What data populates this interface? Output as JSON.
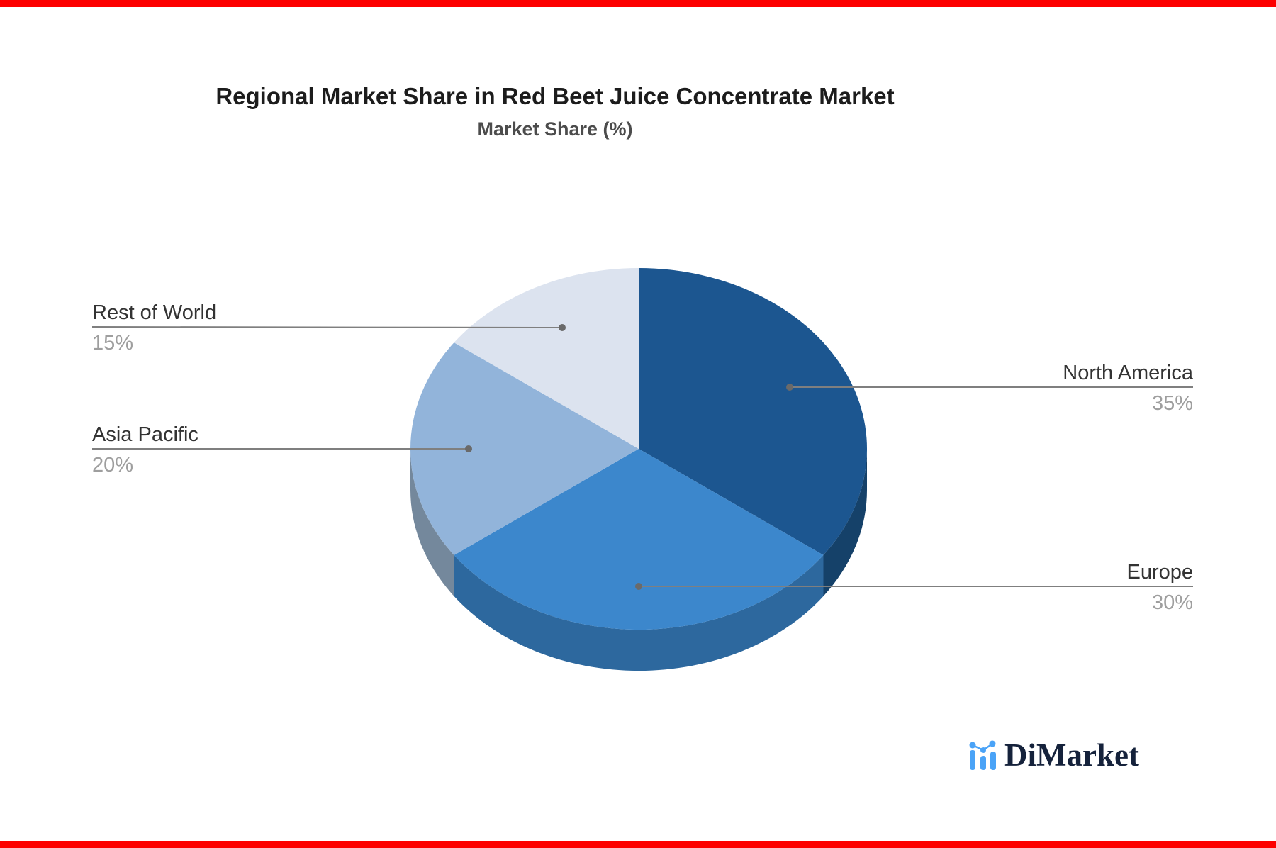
{
  "page": {
    "accent_bar_color": "#fd0000",
    "background": "#ffffff"
  },
  "chart": {
    "title": "Regional Market Share in Red Beet Juice Concentrate Market",
    "subtitle": "Market Share (%)"
  },
  "chart_data": {
    "type": "pie",
    "title": "Regional Market Share in Red Beet Juice Concentrate Market",
    "subtitle": "Market Share (%)",
    "unit": "%",
    "style": "3d",
    "start_angle": "top",
    "direction": "clockwise",
    "legend_position": "connector-labels",
    "slices": [
      {
        "label": "North America",
        "value": 35,
        "pct_label": "35%",
        "color": "#1c5690",
        "side_color": "#154169"
      },
      {
        "label": "Europe",
        "value": 30,
        "pct_label": "30%",
        "color": "#3c87cc",
        "side_color": "#2d689e"
      },
      {
        "label": "Asia Pacific",
        "value": 20,
        "pct_label": "20%",
        "color": "#92b4da",
        "side_color": "#74889c"
      },
      {
        "label": "Rest of World",
        "value": 15,
        "pct_label": "15%",
        "color": "#dce3ef",
        "side_color": "#c2ccd9"
      }
    ],
    "connector_color": "#7f7f7f",
    "label_text_color": "#333333",
    "label_pct_color": "#9e9e9e"
  },
  "logo": {
    "text": "DiMarket",
    "icon": "bar-line-chart-icon",
    "icon_color": "#4aa3f7",
    "text_color": "#15223b"
  }
}
